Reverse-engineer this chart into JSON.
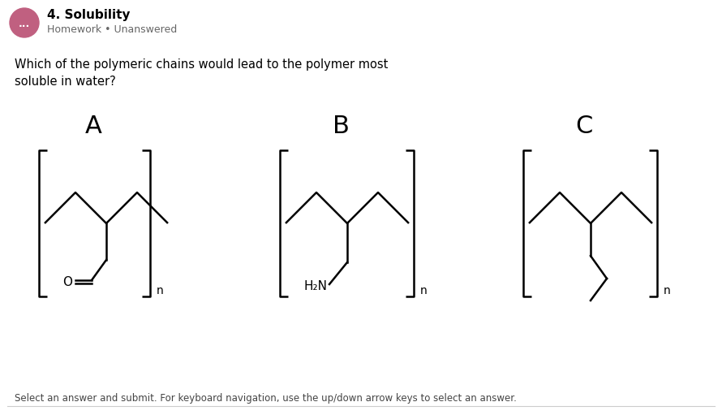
{
  "background_color": "#ffffff",
  "title": "4. Solubility",
  "subtitle": "Homework • Unanswered",
  "question": "Which of the polymeric chains would lead to the polymer most\nsoluble in water?",
  "footer": "Select an answer and submit. For keyboard navigation, use the up/down arrow keys to select an answer.",
  "labels": [
    "A",
    "B",
    "C"
  ],
  "icon_color": "#c06080",
  "text_color": "#000000",
  "gray_color": "#555555",
  "lw": 1.8
}
